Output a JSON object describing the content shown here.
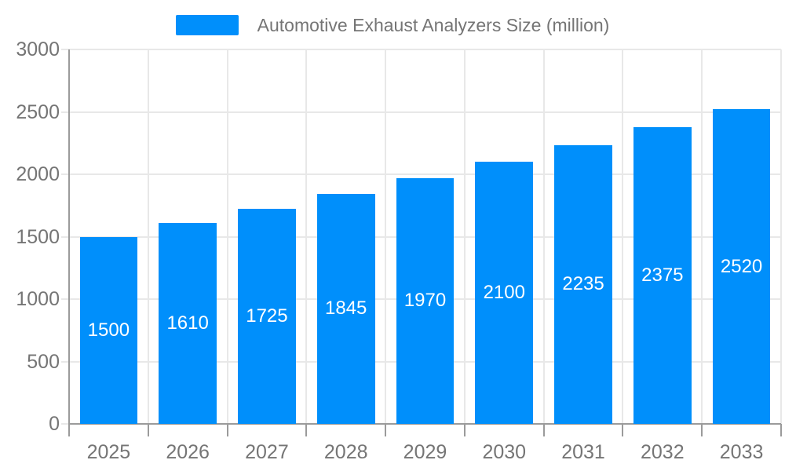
{
  "chart_data": {
    "type": "bar",
    "title": "Automotive Exhaust Analyzers Size (million)",
    "categories": [
      "2025",
      "2026",
      "2027",
      "2028",
      "2029",
      "2030",
      "2031",
      "2032",
      "2033"
    ],
    "values": [
      1500,
      1610,
      1725,
      1845,
      1970,
      2100,
      2235,
      2375,
      2520
    ],
    "series": [
      {
        "name": "Automotive Exhaust Analyzers Size (million)",
        "values": [
          1500,
          1610,
          1725,
          1845,
          1970,
          2100,
          2235,
          2375,
          2520
        ]
      }
    ],
    "xlabel": "",
    "ylabel": "",
    "ylim": [
      0,
      3000
    ],
    "y_ticks": [
      0,
      500,
      1000,
      1500,
      2000,
      2500,
      3000
    ],
    "grid": true,
    "legend_position": "top",
    "value_labels_inside_bars": true,
    "colors": {
      "bar": "#008FFB",
      "grid": "#e8e8e8",
      "axis": "#9b9b9b",
      "tick_label": "#757575",
      "legend_text": "#757575",
      "value_label": "#ffffff"
    }
  }
}
